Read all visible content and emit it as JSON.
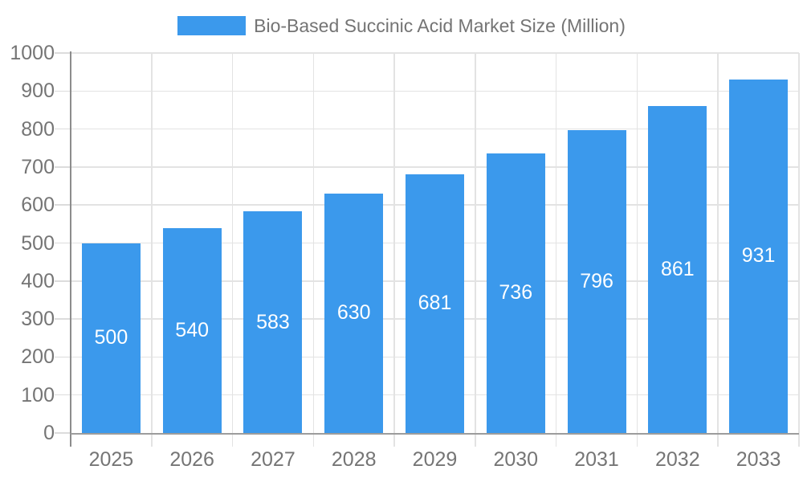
{
  "chart_data": {
    "type": "bar",
    "title": "Bio-Based Succinic Acid Market Size (Million)",
    "categories": [
      "2025",
      "2026",
      "2027",
      "2028",
      "2029",
      "2030",
      "2031",
      "2032",
      "2033"
    ],
    "values": [
      500,
      540,
      583,
      630,
      681,
      736,
      796,
      861,
      931
    ],
    "xlabel": "",
    "ylabel": "",
    "ylim": [
      0,
      1000
    ],
    "ytick_step": 100,
    "ytick_labels": [
      "0",
      "100",
      "200",
      "300",
      "400",
      "500",
      "600",
      "700",
      "800",
      "900",
      "1000"
    ],
    "grid": true,
    "legend_position": "top-center",
    "value_label_position": "inside-center"
  },
  "colors": {
    "bar": "#3B99EC",
    "grid": "#e3e3e3",
    "tick": "#dcdcdc",
    "y_axis_line": "#8c8c8c",
    "x_axis_line": "#9c9c9c",
    "axis_text": "#757575",
    "legend_text": "#747474",
    "value_text": "#ffffff",
    "background": "#ffffff"
  }
}
